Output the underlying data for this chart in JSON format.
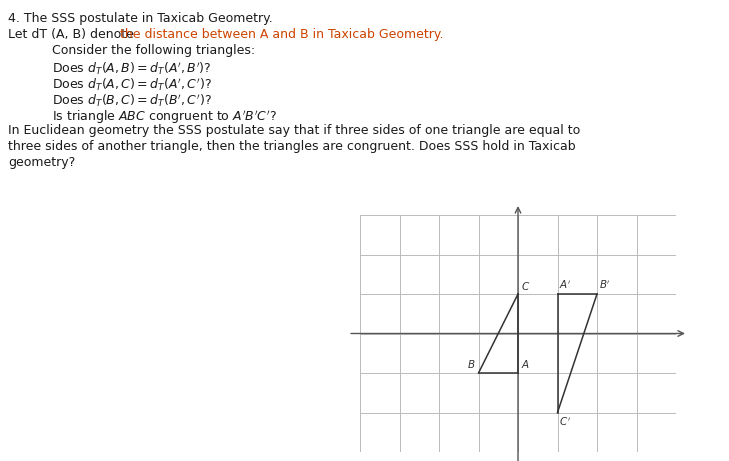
{
  "highlight_color": "#CC4400",
  "body_color": "#1a1a1a",
  "background_color": "#ffffff",
  "axis_color": "#555555",
  "grid_color": "#bbbbbb",
  "triangle_color": "#333333",
  "grid_xlim": [
    -4,
    4
  ],
  "grid_ylim": [
    -3,
    3
  ],
  "triangle1": {
    "A": [
      0,
      -1
    ],
    "B": [
      -1,
      -1
    ],
    "C": [
      0,
      1
    ]
  },
  "triangle2": {
    "A_prime": [
      1,
      1
    ],
    "B_prime": [
      2,
      1
    ],
    "C_prime": [
      1,
      -2
    ]
  },
  "fontsize_main": 9.0,
  "label_fontsize": 7.5
}
